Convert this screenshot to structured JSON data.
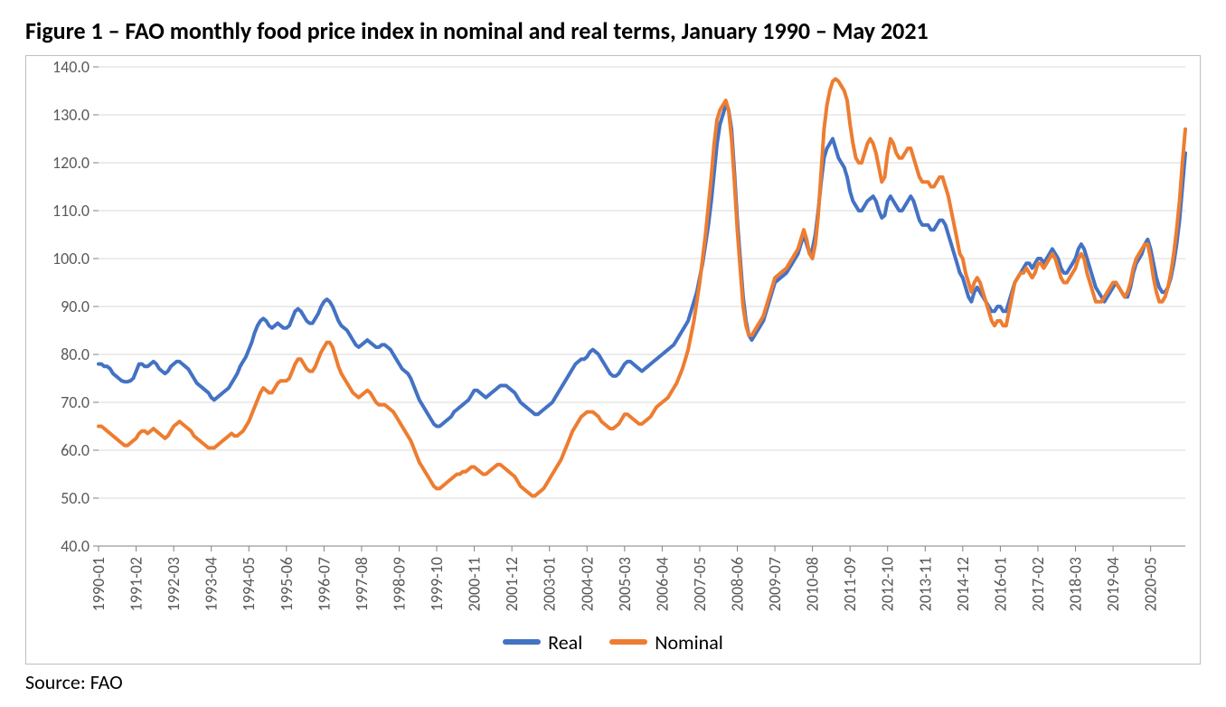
{
  "title": "Figure 1 – FAO monthly food price index in nominal and real terms, January 1990 – May 2021",
  "source": "Source: FAO",
  "chart": {
    "type": "line",
    "background_color": "#ffffff",
    "border_color": "#bfbfbf",
    "grid_color": "#d9d9d9",
    "tick_color": "#808080",
    "axis_label_color": "#595959",
    "axis_label_fontsize": 18,
    "line_width": 4,
    "ylim": [
      40,
      140
    ],
    "ytick_step": 10,
    "yticks": [
      "40.0",
      "50.0",
      "60.0",
      "70.0",
      "80.0",
      "90.0",
      "100.0",
      "110.0",
      "120.0",
      "130.0",
      "140.0"
    ],
    "xticks": [
      {
        "idx": 0,
        "label": "1990-01"
      },
      {
        "idx": 13,
        "label": "1991-02"
      },
      {
        "idx": 26,
        "label": "1992-03"
      },
      {
        "idx": 39,
        "label": "1993-04"
      },
      {
        "idx": 52,
        "label": "1994-05"
      },
      {
        "idx": 65,
        "label": "1995-06"
      },
      {
        "idx": 78,
        "label": "1996-07"
      },
      {
        "idx": 91,
        "label": "1997-08"
      },
      {
        "idx": 104,
        "label": "1998-09"
      },
      {
        "idx": 117,
        "label": "1999-10"
      },
      {
        "idx": 130,
        "label": "2000-11"
      },
      {
        "idx": 143,
        "label": "2001-12"
      },
      {
        "idx": 156,
        "label": "2003-01"
      },
      {
        "idx": 169,
        "label": "2004-02"
      },
      {
        "idx": 182,
        "label": "2005-03"
      },
      {
        "idx": 195,
        "label": "2006-04"
      },
      {
        "idx": 208,
        "label": "2007-05"
      },
      {
        "idx": 221,
        "label": "2008-06"
      },
      {
        "idx": 234,
        "label": "2009-07"
      },
      {
        "idx": 247,
        "label": "2010-08"
      },
      {
        "idx": 260,
        "label": "2011-09"
      },
      {
        "idx": 273,
        "label": "2012-10"
      },
      {
        "idx": 286,
        "label": "2013-11"
      },
      {
        "idx": 299,
        "label": "2014-12"
      },
      {
        "idx": 312,
        "label": "2016-01"
      },
      {
        "idx": 325,
        "label": "2017-02"
      },
      {
        "idx": 338,
        "label": "2018-03"
      },
      {
        "idx": 351,
        "label": "2019-04"
      },
      {
        "idx": 364,
        "label": "2020-05"
      }
    ],
    "n_points": 377,
    "legend": {
      "items": [
        {
          "label": "Real",
          "color": "#4472c4"
        },
        {
          "label": "Nominal",
          "color": "#ed7d31"
        }
      ],
      "fontsize": 22,
      "position": "bottom-center"
    },
    "series": [
      {
        "name": "Real",
        "color": "#4472c4",
        "values": [
          78.0,
          78.0,
          77.5,
          77.5,
          77.0,
          76.0,
          75.5,
          75.0,
          74.5,
          74.3,
          74.3,
          74.5,
          75.0,
          76.5,
          78.0,
          78.0,
          77.5,
          77.5,
          78.0,
          78.5,
          78.0,
          77.0,
          76.5,
          76.0,
          76.5,
          77.5,
          78.0,
          78.5,
          78.5,
          78.0,
          77.5,
          77.0,
          76.0,
          75.0,
          74.0,
          73.5,
          73.0,
          72.5,
          72.0,
          71.0,
          70.5,
          71.0,
          71.5,
          72.0,
          72.5,
          73.0,
          74.0,
          75.0,
          76.0,
          77.5,
          78.5,
          79.5,
          81.0,
          82.5,
          84.5,
          86.0,
          87.0,
          87.5,
          87.0,
          86.0,
          85.5,
          86.0,
          86.5,
          86.0,
          85.5,
          85.5,
          86.0,
          87.5,
          89.0,
          89.5,
          89.0,
          88.0,
          87.0,
          86.5,
          86.5,
          87.5,
          88.5,
          90.0,
          91.0,
          91.5,
          91.0,
          90.0,
          88.5,
          87.0,
          86.0,
          85.5,
          85.0,
          84.0,
          83.0,
          82.0,
          81.5,
          82.0,
          82.5,
          83.0,
          82.5,
          82.0,
          81.5,
          81.5,
          82.0,
          82.0,
          81.5,
          81.0,
          80.0,
          79.0,
          78.0,
          77.0,
          76.5,
          76.0,
          75.0,
          73.5,
          72.0,
          70.5,
          69.5,
          68.5,
          67.5,
          66.5,
          65.5,
          65.0,
          65.0,
          65.5,
          66.0,
          66.5,
          67.0,
          68.0,
          68.5,
          69.0,
          69.5,
          70.0,
          70.5,
          71.5,
          72.5,
          72.5,
          72.0,
          71.5,
          71.0,
          71.5,
          72.0,
          72.5,
          73.0,
          73.5,
          73.5,
          73.5,
          73.0,
          72.5,
          72.0,
          71.0,
          70.0,
          69.5,
          69.0,
          68.5,
          68.0,
          67.5,
          67.5,
          68.0,
          68.5,
          69.0,
          69.5,
          70.0,
          71.0,
          72.0,
          73.0,
          74.0,
          75.0,
          76.0,
          77.0,
          78.0,
          78.5,
          79.0,
          79.0,
          79.5,
          80.5,
          81.0,
          80.5,
          80.0,
          79.0,
          78.0,
          77.0,
          76.0,
          75.5,
          75.5,
          76.0,
          77.0,
          78.0,
          78.5,
          78.5,
          78.0,
          77.5,
          77.0,
          76.5,
          77.0,
          77.5,
          78.0,
          78.5,
          79.0,
          79.5,
          80.0,
          80.5,
          81.0,
          81.5,
          82.0,
          83.0,
          84.0,
          85.0,
          86.0,
          87.0,
          89.0,
          91.0,
          93.0,
          96.0,
          99.0,
          103.0,
          107.0,
          112.0,
          118.0,
          124.0,
          128.0,
          130.0,
          132.0,
          131.0,
          127.0,
          118.0,
          108.0,
          100.0,
          92.0,
          87.0,
          84.0,
          83.0,
          84.0,
          85.0,
          86.0,
          87.0,
          89.0,
          91.0,
          93.0,
          95.0,
          95.5,
          96.0,
          96.5,
          97.0,
          98.0,
          99.0,
          100.0,
          101.0,
          103.0,
          105.0,
          103.0,
          101.0,
          102.0,
          105.0,
          110.0,
          116.0,
          121.0,
          123.0,
          124.0,
          125.0,
          123.0,
          121.0,
          120.0,
          119.0,
          117.0,
          114.0,
          112.0,
          111.0,
          110.0,
          110.0,
          111.0,
          112.0,
          112.5,
          113.0,
          112.0,
          110.0,
          108.5,
          109.0,
          112.0,
          113.0,
          112.0,
          111.0,
          110.0,
          110.0,
          111.0,
          112.0,
          113.0,
          112.0,
          110.0,
          108.0,
          107.0,
          107.0,
          107.0,
          106.0,
          106.0,
          107.0,
          108.0,
          108.0,
          107.0,
          105.0,
          103.0,
          101.0,
          99.0,
          97.0,
          96.0,
          94.0,
          92.0,
          91.0,
          93.0,
          94.0,
          93.0,
          92.0,
          91.0,
          90.0,
          89.0,
          89.0,
          90.0,
          90.0,
          89.0,
          89.0,
          91.0,
          93.0,
          95.0,
          96.0,
          97.0,
          98.0,
          99.0,
          99.0,
          98.0,
          99.0,
          100.0,
          100.0,
          99.0,
          100.0,
          101.0,
          102.0,
          101.0,
          100.0,
          98.0,
          97.0,
          97.0,
          98.0,
          99.0,
          100.0,
          102.0,
          103.0,
          102.0,
          100.0,
          98.0,
          96.0,
          94.0,
          93.0,
          92.0,
          91.0,
          92.0,
          93.0,
          94.0,
          95.0,
          94.0,
          93.0,
          92.0,
          92.0,
          94.0,
          97.0,
          99.0,
          100.0,
          101.0,
          103.0,
          104.0,
          102.0,
          99.0,
          96.0,
          94.0,
          93.0,
          93.0,
          94.0,
          96.0,
          99.0,
          103.0,
          108.0,
          115.0,
          122.0
        ]
      },
      {
        "name": "Nominal",
        "color": "#ed7d31",
        "values": [
          65.0,
          65.0,
          64.5,
          64.0,
          63.5,
          63.0,
          62.5,
          62.0,
          61.5,
          61.0,
          61.0,
          61.5,
          62.0,
          62.5,
          63.5,
          64.0,
          64.0,
          63.5,
          64.0,
          64.5,
          64.0,
          63.5,
          63.0,
          62.5,
          63.0,
          64.0,
          65.0,
          65.5,
          66.0,
          65.5,
          65.0,
          64.5,
          64.0,
          63.0,
          62.5,
          62.0,
          61.5,
          61.0,
          60.5,
          60.5,
          60.5,
          61.0,
          61.5,
          62.0,
          62.5,
          63.0,
          63.5,
          63.0,
          63.0,
          63.5,
          64.0,
          65.0,
          66.0,
          67.5,
          69.0,
          70.5,
          72.0,
          73.0,
          72.5,
          72.0,
          72.0,
          73.0,
          74.0,
          74.5,
          74.5,
          74.5,
          75.0,
          76.5,
          78.0,
          79.0,
          79.0,
          78.0,
          77.0,
          76.5,
          76.5,
          77.5,
          79.0,
          80.5,
          81.5,
          82.5,
          82.5,
          81.5,
          79.5,
          77.5,
          76.0,
          75.0,
          74.0,
          73.0,
          72.0,
          71.5,
          71.0,
          71.5,
          72.0,
          72.5,
          72.0,
          71.0,
          70.0,
          69.5,
          69.5,
          69.5,
          69.0,
          68.5,
          68.0,
          67.0,
          66.0,
          65.0,
          64.0,
          63.0,
          62.0,
          60.5,
          59.0,
          57.5,
          56.5,
          55.5,
          54.5,
          53.5,
          52.5,
          52.0,
          52.0,
          52.5,
          53.0,
          53.5,
          54.0,
          54.5,
          55.0,
          55.0,
          55.5,
          55.5,
          56.0,
          56.5,
          56.5,
          56.0,
          55.5,
          55.0,
          55.0,
          55.5,
          56.0,
          56.5,
          57.0,
          57.0,
          56.5,
          56.0,
          55.5,
          55.0,
          54.5,
          53.5,
          52.5,
          52.0,
          51.5,
          51.0,
          50.5,
          50.5,
          51.0,
          51.5,
          52.0,
          53.0,
          54.0,
          55.0,
          56.0,
          57.0,
          58.0,
          59.5,
          61.0,
          62.5,
          64.0,
          65.0,
          66.0,
          67.0,
          67.5,
          68.0,
          68.0,
          68.0,
          67.5,
          67.0,
          66.0,
          65.5,
          65.0,
          64.5,
          64.5,
          65.0,
          65.5,
          66.5,
          67.5,
          67.5,
          67.0,
          66.5,
          66.0,
          65.5,
          65.5,
          66.0,
          66.5,
          67.0,
          68.0,
          69.0,
          69.5,
          70.0,
          70.5,
          71.0,
          72.0,
          73.0,
          74.0,
          75.5,
          77.0,
          79.0,
          81.0,
          84.0,
          87.0,
          91.0,
          95.0,
          100.0,
          105.0,
          111.0,
          117.0,
          124.0,
          129.0,
          131.0,
          132.0,
          133.0,
          131.0,
          125.0,
          116.0,
          106.0,
          98.0,
          90.0,
          86.0,
          84.0,
          84.0,
          85.0,
          86.0,
          87.0,
          88.0,
          90.0,
          92.0,
          94.0,
          96.0,
          96.5,
          97.0,
          97.5,
          98.0,
          99.0,
          100.0,
          101.0,
          102.0,
          104.0,
          106.0,
          104.0,
          101.0,
          100.0,
          103.0,
          109.0,
          118.0,
          127.0,
          132.0,
          135.0,
          137.0,
          137.5,
          137.0,
          136.0,
          135.0,
          133.0,
          128.0,
          124.0,
          121.0,
          120.0,
          120.0,
          122.0,
          124.0,
          125.0,
          124.0,
          122.0,
          119.0,
          116.0,
          117.0,
          122.0,
          125.0,
          124.0,
          122.0,
          121.0,
          121.0,
          122.0,
          123.0,
          123.0,
          121.0,
          119.0,
          117.0,
          116.0,
          116.0,
          116.0,
          115.0,
          115.0,
          116.0,
          117.0,
          117.0,
          115.0,
          113.0,
          110.0,
          107.0,
          104.0,
          101.0,
          100.0,
          97.0,
          95.0,
          93.0,
          95.0,
          96.0,
          95.0,
          93.0,
          91.0,
          89.0,
          87.0,
          86.0,
          87.0,
          87.0,
          86.0,
          86.0,
          89.0,
          92.0,
          95.0,
          96.0,
          97.0,
          97.0,
          98.0,
          97.0,
          96.0,
          97.0,
          99.0,
          99.0,
          98.0,
          99.0,
          100.0,
          101.0,
          100.0,
          98.0,
          96.0,
          95.0,
          95.0,
          96.0,
          97.0,
          98.0,
          100.0,
          101.0,
          100.0,
          97.0,
          95.0,
          93.0,
          91.0,
          91.0,
          91.0,
          92.0,
          93.0,
          94.0,
          95.0,
          95.0,
          94.0,
          93.0,
          92.0,
          93.0,
          95.0,
          98.0,
          100.0,
          101.0,
          102.0,
          103.0,
          103.0,
          100.0,
          96.0,
          93.0,
          91.0,
          91.0,
          92.0,
          94.0,
          97.0,
          101.0,
          106.0,
          112.0,
          120.0,
          127.0
        ]
      }
    ]
  }
}
